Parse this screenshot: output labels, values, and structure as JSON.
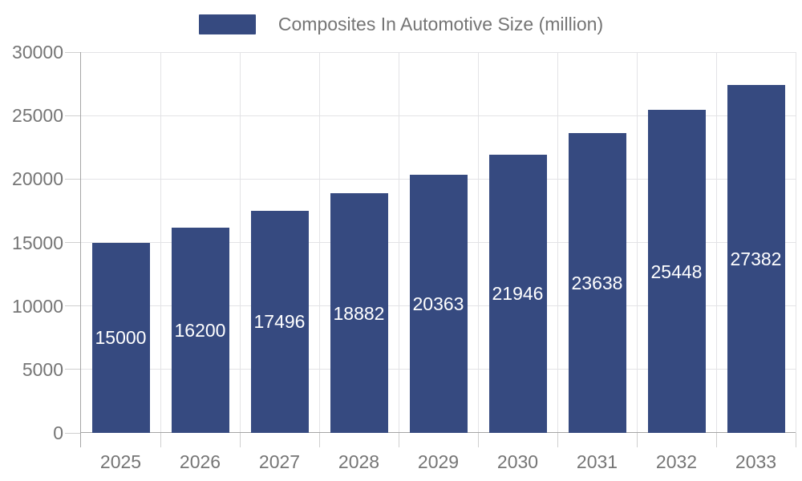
{
  "legend": {
    "label": "Composites In Automotive Size (million)"
  },
  "chart_data": {
    "type": "bar",
    "title": "Composites In Automotive Size (million)",
    "categories": [
      "2025",
      "2026",
      "2027",
      "2028",
      "2029",
      "2030",
      "2031",
      "2032",
      "2033"
    ],
    "values": [
      15000,
      16200,
      17496,
      18882,
      20363,
      21946,
      23638,
      25448,
      27382
    ],
    "series": [
      {
        "name": "Composites In Automotive Size (million)",
        "values": [
          15000,
          16200,
          17496,
          18882,
          20363,
          21946,
          23638,
          25448,
          27382
        ]
      }
    ],
    "xlabel": "",
    "ylabel": "",
    "ylim": [
      0,
      30000
    ],
    "yticks": [
      0,
      5000,
      10000,
      15000,
      20000,
      25000,
      30000
    ],
    "grid": true,
    "legend_position": "top-center",
    "bar_labels": "inside-center-white"
  },
  "colors": {
    "bar": "#364A80",
    "bar_label_text": "#FFFFFF",
    "axis_line": "#A6A6A6",
    "gridline": "#E3E3E6",
    "tick_mark": "#CFCFCF",
    "axis_text": "#757575",
    "legend_text": "#757575",
    "background": "#FFFFFF"
  }
}
